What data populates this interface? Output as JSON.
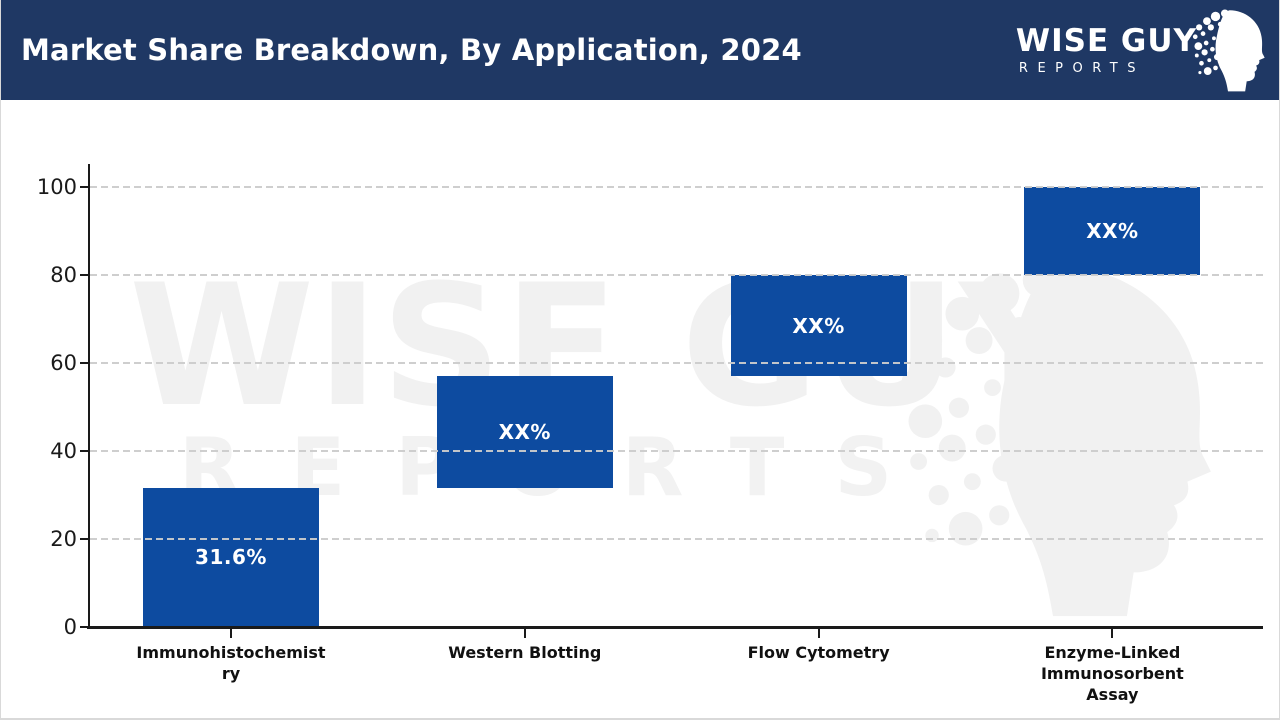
{
  "header": {
    "title": "Market Share Breakdown, By Application, 2024",
    "logo": {
      "primary": "WISE GUY",
      "secondary": "REPORTS"
    }
  },
  "watermark": {
    "primary": "WISE GUY",
    "secondary": "REPORTS"
  },
  "chart_data": {
    "type": "bar",
    "subtype": "waterfall-floating-segments",
    "title": "Market Share Breakdown, By Application, 2024",
    "categories": [
      "Immunohistochemistry",
      "Western Blotting",
      "Flow Cytometry",
      "Enzyme-Linked Immunosorbent Assay"
    ],
    "category_label_lines": [
      [
        "Immunohistochemist",
        "ry"
      ],
      [
        "Western Blotting"
      ],
      [
        "Flow Cytometry"
      ],
      [
        "Enzyme-Linked",
        "Immunosorbent",
        "Assay"
      ]
    ],
    "segments": [
      {
        "category": "Immunohistochemistry",
        "start": 0,
        "end": 31.6,
        "label": "31.6%"
      },
      {
        "category": "Western Blotting",
        "start": 31.6,
        "end": 57,
        "label": "XX%"
      },
      {
        "category": "Flow Cytometry",
        "start": 57,
        "end": 80,
        "label": "XX%"
      },
      {
        "category": "Enzyme-Linked Immunosorbent Assay",
        "start": 80,
        "end": 100,
        "label": "XX%"
      }
    ],
    "ylim": [
      0,
      100
    ],
    "yticks": [
      0,
      20,
      40,
      60,
      80,
      100
    ],
    "grid": {
      "axis": "y",
      "style": "dashed",
      "color": "#cccccc"
    },
    "legend": "none",
    "colors": {
      "bar": "#0d4ba0",
      "header_bg": "#1f3864",
      "axis": "#1a1a1a",
      "bar_label": "#ffffff",
      "watermark": "#f1f1f1"
    }
  }
}
